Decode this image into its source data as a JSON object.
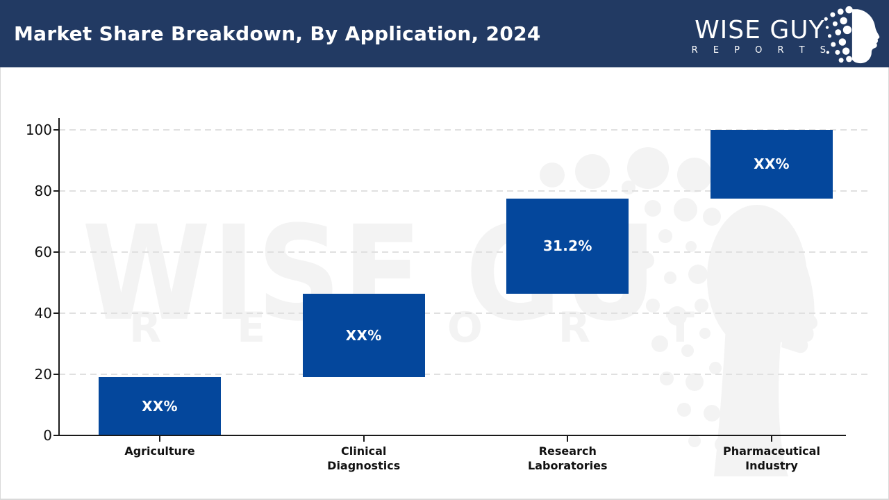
{
  "header": {
    "title": "Market Share Breakdown, By Application, 2024",
    "logo": {
      "line1": "WISE GUY",
      "line2": "R E P O R T S"
    }
  },
  "watermark": {
    "line1": "WISE GU",
    "line2": "R E P O R T S"
  },
  "chart_data": {
    "type": "bar",
    "subtype": "waterfall",
    "title": "Market Share Breakdown, By Application, 2024",
    "categories": [
      "Agriculture",
      "Clinical Diagnostics",
      "Research Laboratories",
      "Pharmaceutical Industry"
    ],
    "bars": [
      {
        "category": "Agriculture",
        "start": 0,
        "end": 19.2,
        "label": "XX%"
      },
      {
        "category": "Clinical Diagnostics",
        "start": 19.2,
        "end": 46.4,
        "label": "XX%"
      },
      {
        "category": "Research Laboratories",
        "start": 46.4,
        "end": 77.6,
        "label": "31.2%"
      },
      {
        "category": "Pharmaceutical Industry",
        "start": 77.6,
        "end": 100,
        "label": "XX%"
      }
    ],
    "xlabel": "",
    "ylabel": "",
    "ylim": [
      0,
      100
    ],
    "yticks": [
      0,
      20,
      40,
      60,
      80,
      100
    ],
    "grid": "horizontal-dashed",
    "legend": null,
    "bar_color": "#04479c"
  },
  "colors": {
    "header_bg": "#223a63",
    "bar": "#04479c",
    "axis": "#1a1a1a",
    "grid": "#e0e0e0",
    "watermark": "#f3f3f3",
    "card_border": "#d9d9d9"
  }
}
